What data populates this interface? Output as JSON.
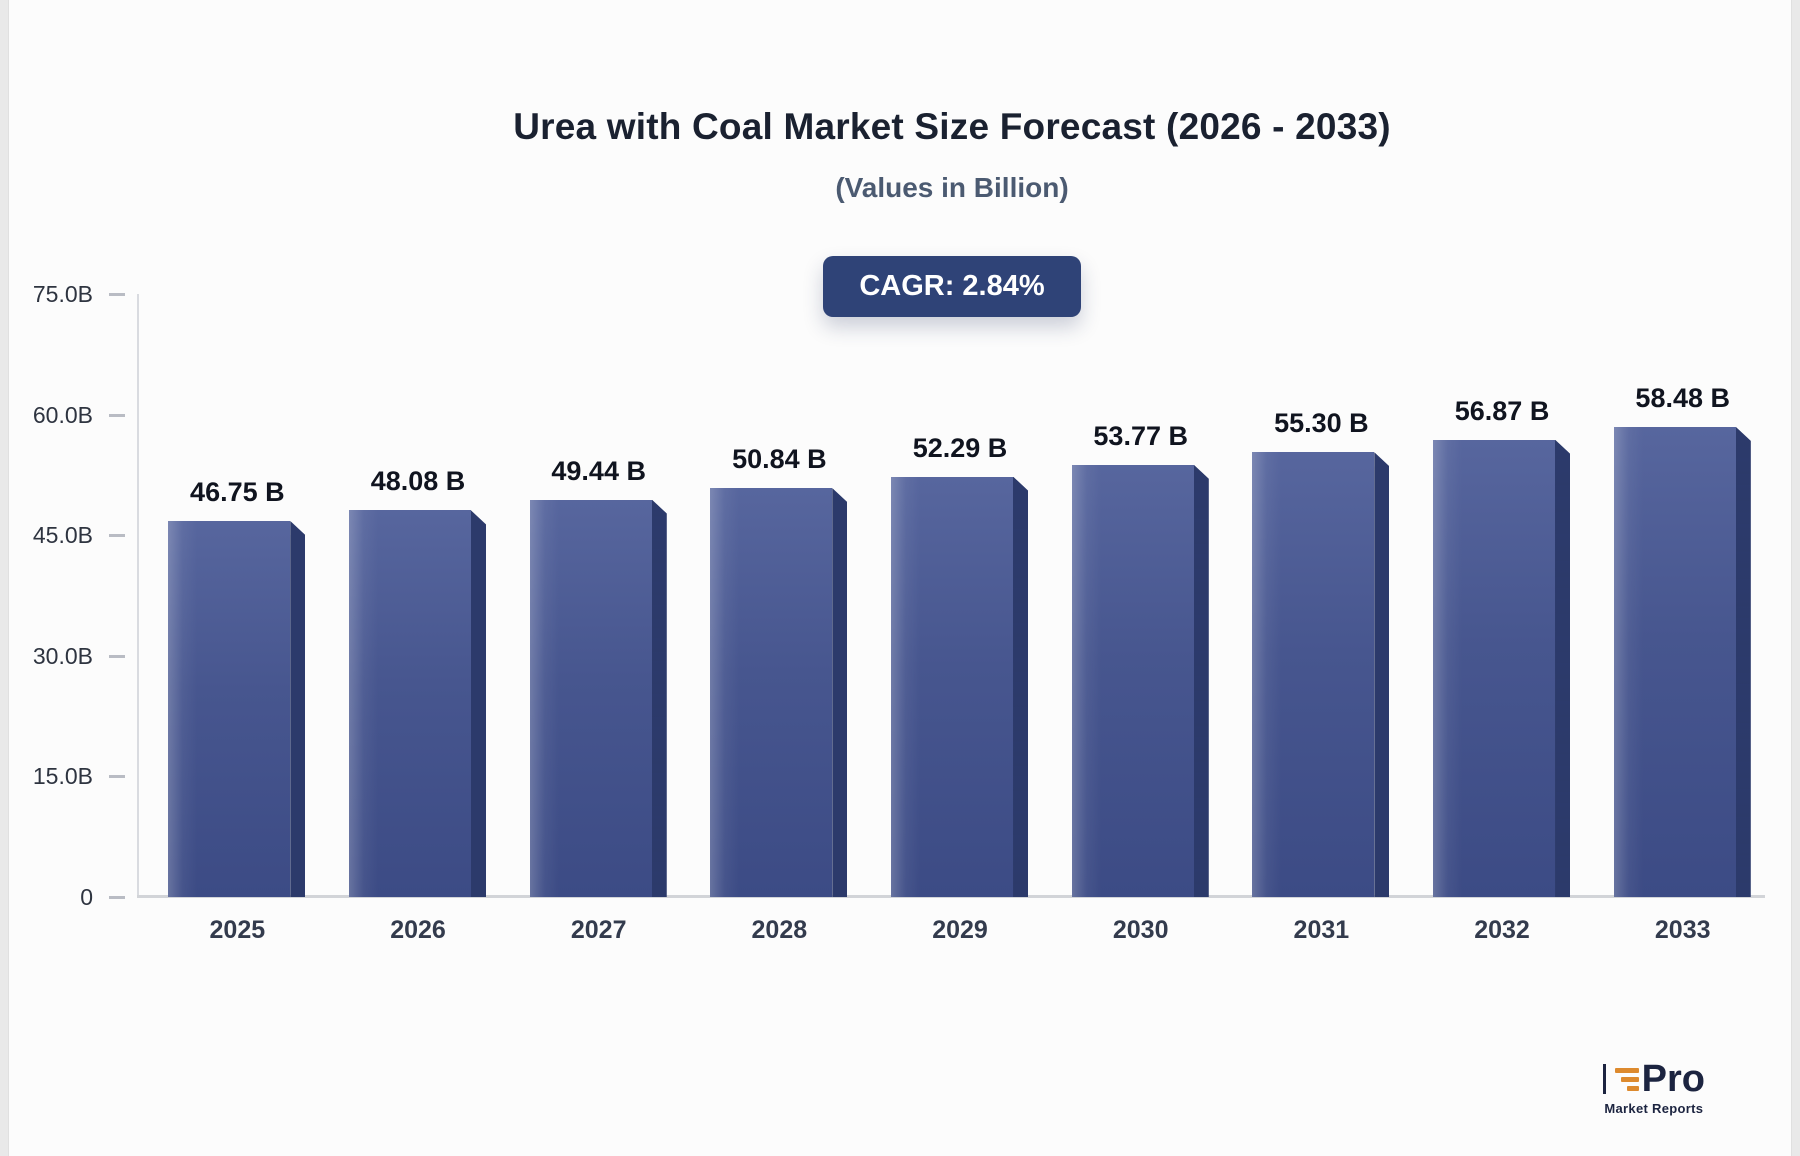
{
  "header": {
    "title": "Urea with Coal Market Size Forecast (2026 - 2033)",
    "subtitle": "(Values in Billion)",
    "cagr_badge": "CAGR: 2.84%"
  },
  "chart_data": {
    "type": "bar",
    "title": "Urea with Coal Market Size Forecast (2026 - 2033)",
    "subtitle": "(Values in Billion)",
    "unit": "B",
    "cagr": "2.84%",
    "categories": [
      "2025",
      "2026",
      "2027",
      "2028",
      "2029",
      "2030",
      "2031",
      "2032",
      "2033"
    ],
    "values": [
      46.75,
      48.08,
      49.44,
      50.84,
      52.29,
      53.77,
      55.3,
      56.87,
      58.48
    ],
    "value_labels": [
      "46.75 B",
      "48.08 B",
      "49.44 B",
      "50.84 B",
      "52.29 B",
      "53.77 B",
      "55.30 B",
      "56.87 B",
      "58.48 B"
    ],
    "xlabel": "",
    "ylabel": "",
    "ylim": [
      0,
      75
    ],
    "yticks": [
      0,
      15,
      30,
      45,
      60,
      75
    ],
    "ytick_labels": [
      "0",
      "15.0B",
      "30.0B",
      "45.0B",
      "60.0B",
      "75.0B"
    ],
    "grid": false,
    "legend": false
  },
  "style": {
    "bar_front_top": "#57669e",
    "bar_front_mid": "#47568f",
    "bar_front_bottom": "#3c4b85",
    "bar_side": "#2c3a6b",
    "badge_bg": "#2f4377",
    "axis_line": "#d9dbe0",
    "text_dark": "#1a2130",
    "logo_accent": "#dd8a2e"
  },
  "logo": {
    "name": "Pro",
    "subtext": "Market Reports",
    "icon": "stacked-bars-icon"
  }
}
